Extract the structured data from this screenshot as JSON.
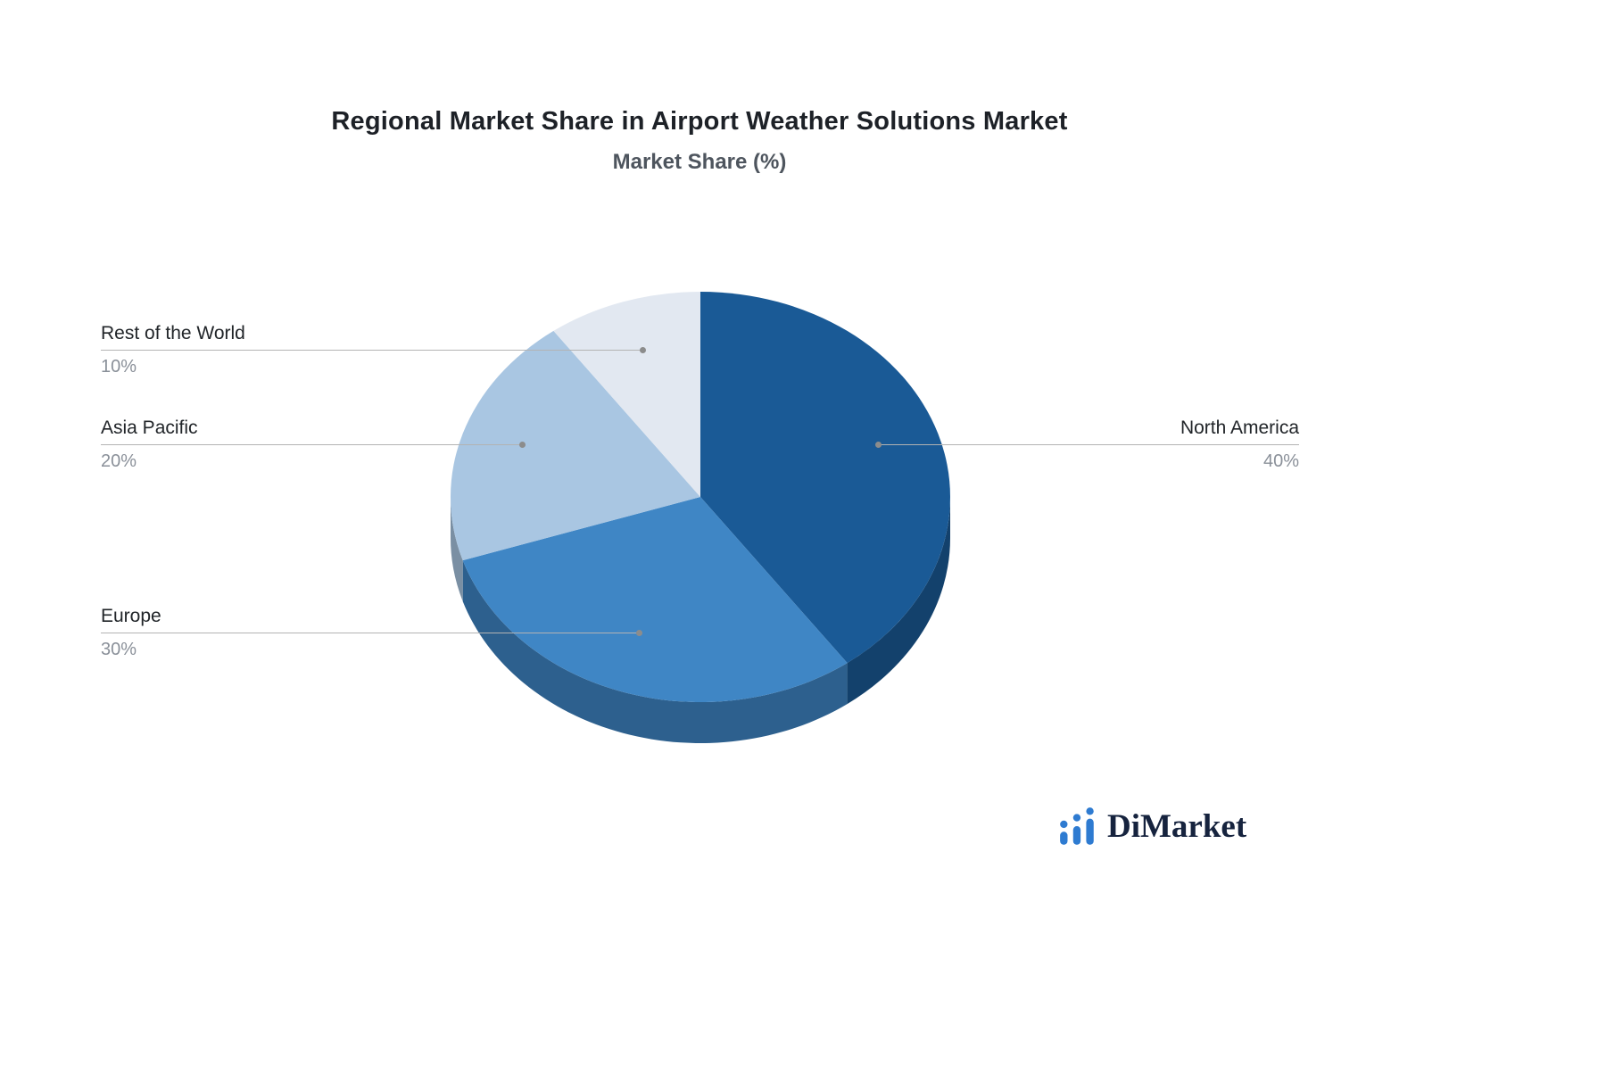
{
  "title": "Regional Market Share in Airport Weather Solutions Market",
  "subtitle": "Market Share (%)",
  "chart_data": {
    "type": "pie",
    "style": "3d-pie",
    "title": "Regional Market Share in Airport Weather Solutions Market",
    "subtitle": "Market Share (%)",
    "unit": "%",
    "labels": [
      "North America",
      "Europe",
      "Asia Pacific",
      "Rest of the World"
    ],
    "values": [
      40,
      30,
      20,
      10
    ],
    "value_labels": [
      "40%",
      "30%",
      "20%",
      "10%"
    ],
    "colors": [
      "#1a5a96",
      "#3f86c5",
      "#a9c6e2",
      "#e2e8f1"
    ],
    "start_angle": "top",
    "direction": "clockwise",
    "legend": "none",
    "leader_line_color": "#b3b3b3",
    "label_color": "#212529",
    "value_color": "#8a9099"
  },
  "logo": {
    "text": "DiMarket",
    "icon": "bar-chart-icon",
    "text_color": "#16233e",
    "icon_color": "#2e7bd1"
  }
}
